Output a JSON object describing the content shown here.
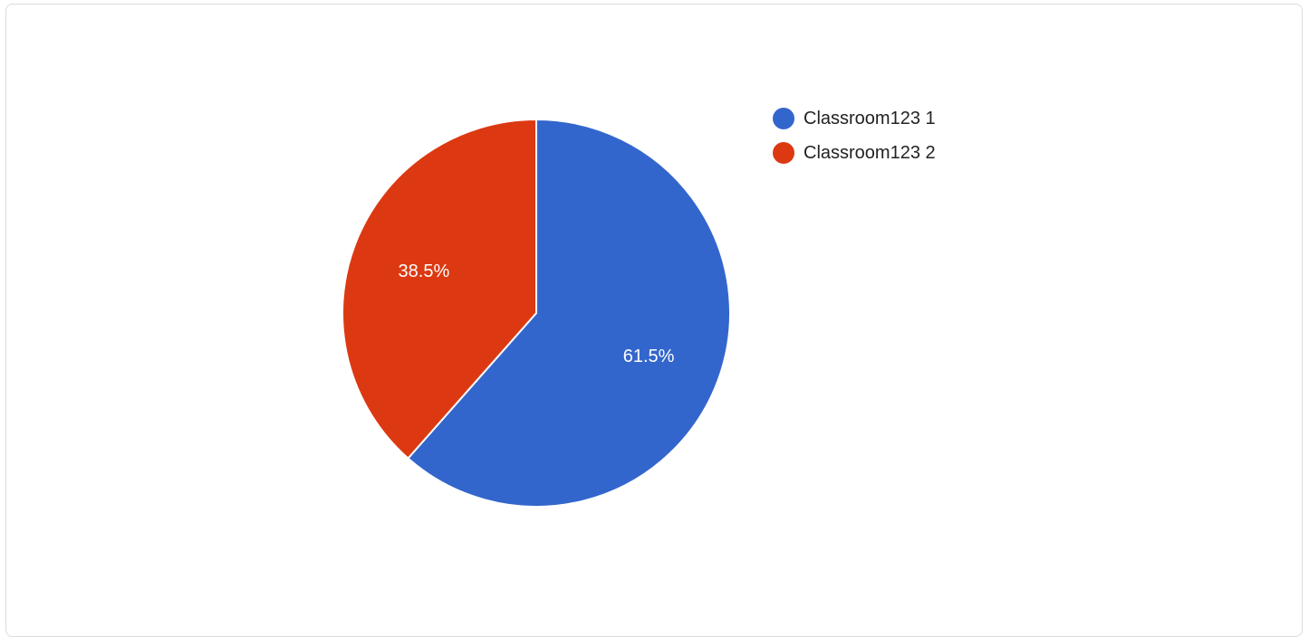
{
  "chart_data": {
    "type": "pie",
    "slices": [
      {
        "label": "Classroom123 1",
        "value": 61.5,
        "display": "61.5%",
        "color": "#3366cc"
      },
      {
        "label": "Classroom123 2",
        "value": 38.5,
        "display": "38.5%",
        "color": "#dc3912"
      }
    ],
    "start_angle": "12 o'clock",
    "direction": "clockwise",
    "legend_position": "right"
  }
}
